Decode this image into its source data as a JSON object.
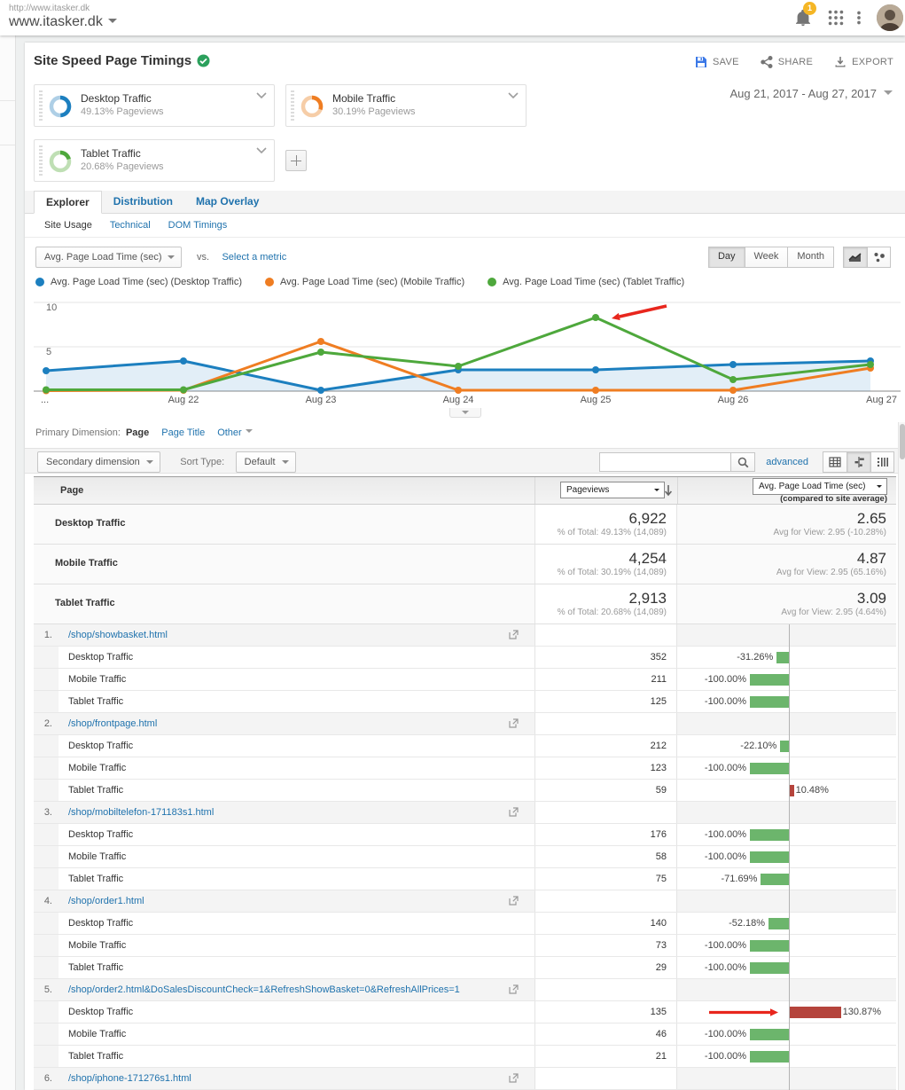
{
  "header": {
    "url_caption": "http://www.itasker.dk",
    "property_name": "www.itasker.dk",
    "notification_count": "1"
  },
  "report": {
    "title": "Site Speed Page Timings",
    "save_label": "SAVE",
    "share_label": "SHARE",
    "export_label": "EXPORT",
    "date_range": "Aug 21, 2017 - Aug 27, 2017"
  },
  "segments": [
    {
      "name": "Desktop Traffic",
      "subtitle": "49.13% Pageviews",
      "pct": 49.13,
      "color": "#1c7fbf",
      "light": "#aecfe6"
    },
    {
      "name": "Mobile Traffic",
      "subtitle": "30.19% Pageviews",
      "pct": 30.19,
      "color": "#ef7d22",
      "light": "#f6cda7"
    },
    {
      "name": "Tablet Traffic",
      "subtitle": "20.68% Pageviews",
      "pct": 20.68,
      "color": "#4ea83c",
      "light": "#bfdfb4"
    }
  ],
  "tabs": [
    {
      "label": "Explorer",
      "active": true
    },
    {
      "label": "Distribution",
      "active": false
    },
    {
      "label": "Map Overlay",
      "active": false
    }
  ],
  "subtabs": [
    {
      "label": "Site Usage",
      "active": true
    },
    {
      "label": "Technical",
      "active": false
    },
    {
      "label": "DOM Timings",
      "active": false
    }
  ],
  "explorer": {
    "metric_select": "Avg. Page Load Time (sec)",
    "vs_label": "vs.",
    "select_metric_label": "Select a metric",
    "granularity": [
      "Day",
      "Week",
      "Month"
    ],
    "granularity_active": "Day"
  },
  "chart_data": {
    "type": "line",
    "x": [
      "...",
      "Aug 22",
      "Aug 23",
      "Aug 24",
      "Aug 25",
      "Aug 26",
      "Aug 27"
    ],
    "ylim": [
      0,
      10
    ],
    "yticks": [
      5,
      10
    ],
    "grid": true,
    "legend_position": "top",
    "series": [
      {
        "name": "Avg. Page Load Time (sec) (Desktop Traffic)",
        "color": "#1c7fbf",
        "area": true,
        "values": [
          2.3,
          3.4,
          0.1,
          2.4,
          2.4,
          3.0,
          3.4
        ]
      },
      {
        "name": "Avg. Page Load Time (sec) (Mobile Traffic)",
        "color": "#ef7d22",
        "area": false,
        "values": [
          0.05,
          0.1,
          5.6,
          0.1,
          0.1,
          0.1,
          2.6
        ]
      },
      {
        "name": "Avg. Page Load Time (sec) (Tablet Traffic)",
        "color": "#4ea83c",
        "area": false,
        "values": [
          0.15,
          0.15,
          4.4,
          2.8,
          8.3,
          1.3,
          3.0
        ]
      }
    ],
    "annotations": [
      {
        "type": "arrow",
        "color": "#e8261d",
        "series": 2,
        "point": 4,
        "note": "red arrow pointing at Tablet Traffic peak on Aug 25"
      }
    ]
  },
  "dimension_bar": {
    "label": "Primary Dimension:",
    "options": [
      {
        "label": "Page",
        "active": true,
        "caret": false
      },
      {
        "label": "Page Title",
        "active": false,
        "caret": false
      },
      {
        "label": "Other",
        "active": false,
        "caret": true
      }
    ]
  },
  "controls": {
    "secondary_dimension_label": "Secondary dimension",
    "sort_type_label": "Sort Type:",
    "sort_default_label": "Default",
    "search_value": "",
    "advanced_label": "advanced"
  },
  "table": {
    "page_col": "Page",
    "pageviews_col": "Pageviews",
    "metric_col": "Avg. Page Load Time (sec)",
    "metric_col_sub": "(compared to site average)",
    "bar_colors": {
      "positive": "#b5443c",
      "negative": "#6cb56c"
    },
    "summary_rows": [
      {
        "label": "Desktop Traffic",
        "pageviews": "6,922",
        "pageviews_sub": "% of Total: 49.13% (14,089)",
        "metric": "2.65",
        "metric_sub": "Avg for View: 2.95 (-10.28%)"
      },
      {
        "label": "Mobile Traffic",
        "pageviews": "4,254",
        "pageviews_sub": "% of Total: 30.19% (14,089)",
        "metric": "4.87",
        "metric_sub": "Avg for View: 2.95 (65.16%)"
      },
      {
        "label": "Tablet Traffic",
        "pageviews": "2,913",
        "pageviews_sub": "% of Total: 20.68% (14,089)",
        "metric": "3.09",
        "metric_sub": "Avg for View: 2.95 (4.64%)"
      }
    ],
    "page_rows": [
      {
        "num": "1.",
        "url": "/shop/showbasket.html",
        "subs": [
          {
            "label": "Desktop Traffic",
            "pageviews": "352",
            "change": "-31.26%",
            "pct": -31.26,
            "arrow": false
          },
          {
            "label": "Mobile Traffic",
            "pageviews": "211",
            "change": "-100.00%",
            "pct": -100,
            "arrow": false
          },
          {
            "label": "Tablet Traffic",
            "pageviews": "125",
            "change": "-100.00%",
            "pct": -100,
            "arrow": false
          }
        ]
      },
      {
        "num": "2.",
        "url": "/shop/frontpage.html",
        "subs": [
          {
            "label": "Desktop Traffic",
            "pageviews": "212",
            "change": "-22.10%",
            "pct": -22.1,
            "arrow": false
          },
          {
            "label": "Mobile Traffic",
            "pageviews": "123",
            "change": "-100.00%",
            "pct": -100,
            "arrow": false
          },
          {
            "label": "Tablet Traffic",
            "pageviews": "59",
            "change": "10.48%",
            "pct": 10.48,
            "arrow": false
          }
        ]
      },
      {
        "num": "3.",
        "url": "/shop/mobiltelefon-171183s1.html",
        "subs": [
          {
            "label": "Desktop Traffic",
            "pageviews": "176",
            "change": "-100.00%",
            "pct": -100,
            "arrow": false
          },
          {
            "label": "Mobile Traffic",
            "pageviews": "58",
            "change": "-100.00%",
            "pct": -100,
            "arrow": false
          },
          {
            "label": "Tablet Traffic",
            "pageviews": "75",
            "change": "-71.69%",
            "pct": -71.69,
            "arrow": false
          }
        ]
      },
      {
        "num": "4.",
        "url": "/shop/order1.html",
        "subs": [
          {
            "label": "Desktop Traffic",
            "pageviews": "140",
            "change": "-52.18%",
            "pct": -52.18,
            "arrow": false
          },
          {
            "label": "Mobile Traffic",
            "pageviews": "73",
            "change": "-100.00%",
            "pct": -100,
            "arrow": false
          },
          {
            "label": "Tablet Traffic",
            "pageviews": "29",
            "change": "-100.00%",
            "pct": -100,
            "arrow": false
          }
        ]
      },
      {
        "num": "5.",
        "url": "/shop/order2.html&DoSalesDiscountCheck=1&RefreshShowBasket=0&RefreshAllPrices=1",
        "subs": [
          {
            "label": "Desktop Traffic",
            "pageviews": "135",
            "change": "130.87%",
            "pct": 130.87,
            "arrow": true
          },
          {
            "label": "Mobile Traffic",
            "pageviews": "46",
            "change": "-100.00%",
            "pct": -100,
            "arrow": false
          },
          {
            "label": "Tablet Traffic",
            "pageviews": "21",
            "change": "-100.00%",
            "pct": -100,
            "arrow": false
          }
        ]
      },
      {
        "num": "6.",
        "url": "/shop/iphone-171276s1.html",
        "subs": []
      }
    ]
  }
}
